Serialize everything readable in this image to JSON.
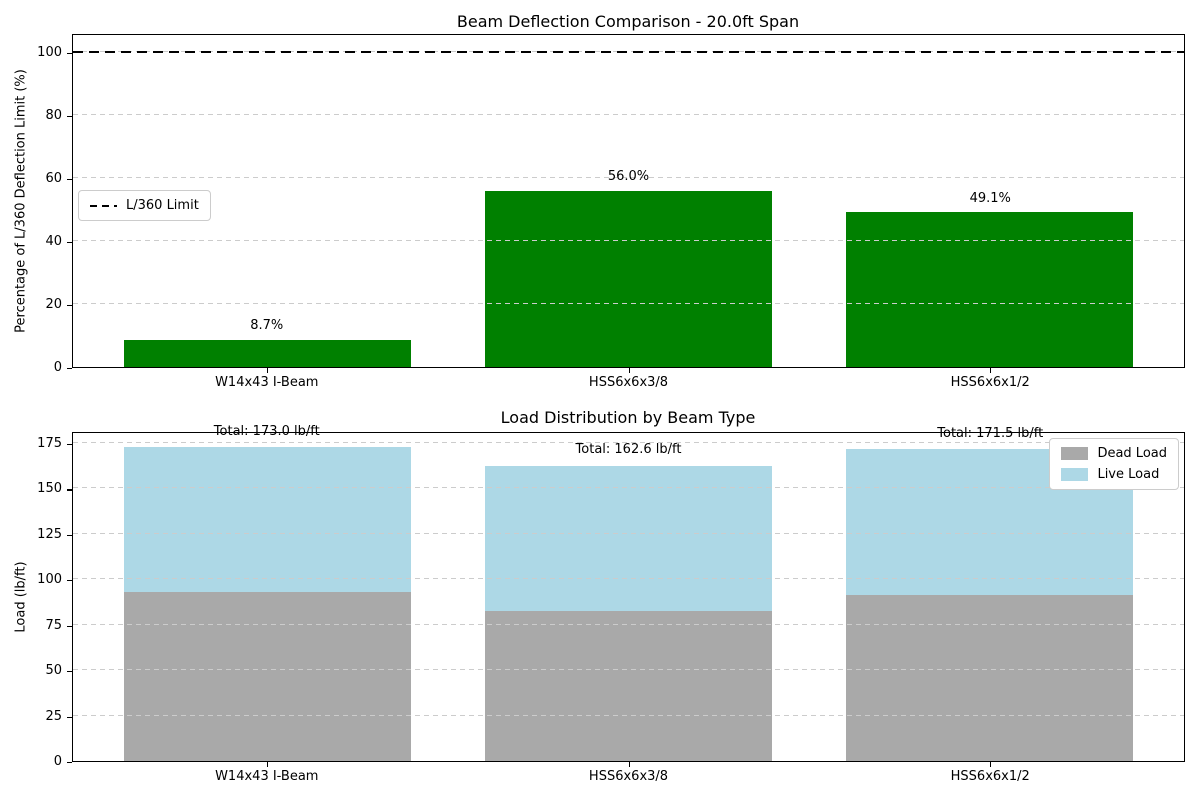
{
  "figure": {
    "background": "#ffffff",
    "axes_edge_color": "#000000",
    "grid_color": "#cccccc"
  },
  "chart_data": [
    {
      "type": "bar",
      "title": "Beam Deflection Comparison - 20.0ft Span",
      "xlabel": "",
      "ylabel": "Percentage of L/360 Deflection Limit (%)",
      "categories": [
        "W14x43 I-Beam",
        "HSS6x6x3/8",
        "HSS6x6x1/2"
      ],
      "values": [
        8.7,
        56.0,
        49.1
      ],
      "bar_labels": [
        "8.7%",
        "56.0%",
        "49.1%"
      ],
      "bar_color": "#008000",
      "yticks": [
        0,
        20,
        40,
        60,
        80,
        100
      ],
      "ylim": [
        0,
        106
      ],
      "grid": "dashed horizontal",
      "limit_line": {
        "value": 100,
        "label": "L/360 Limit",
        "color": "#000000",
        "style": "dashed"
      },
      "legend_position": "center left"
    },
    {
      "type": "bar",
      "stacked": true,
      "title": "Load Distribution by Beam Type",
      "xlabel": "",
      "ylabel": "Load (lb/ft)",
      "categories": [
        "W14x43 I-Beam",
        "HSS6x6x3/8",
        "HSS6x6x1/2"
      ],
      "series": [
        {
          "name": "Dead Load",
          "color": "#a9a9a9",
          "values": [
            93.0,
            82.6,
            91.5
          ]
        },
        {
          "name": "Live Load",
          "color": "#add8e6",
          "values": [
            80.0,
            80.0,
            80.0
          ]
        }
      ],
      "totals": [
        173.0,
        162.6,
        171.5
      ],
      "total_labels": [
        "Total: 173.0 lb/ft",
        "Total: 162.6 lb/ft",
        "Total: 171.5 lb/ft"
      ],
      "yticks": [
        0,
        25,
        50,
        75,
        100,
        125,
        150,
        175
      ],
      "ylim": [
        0,
        181.6
      ],
      "grid": "dashed horizontal",
      "legend_position": "upper right"
    }
  ]
}
